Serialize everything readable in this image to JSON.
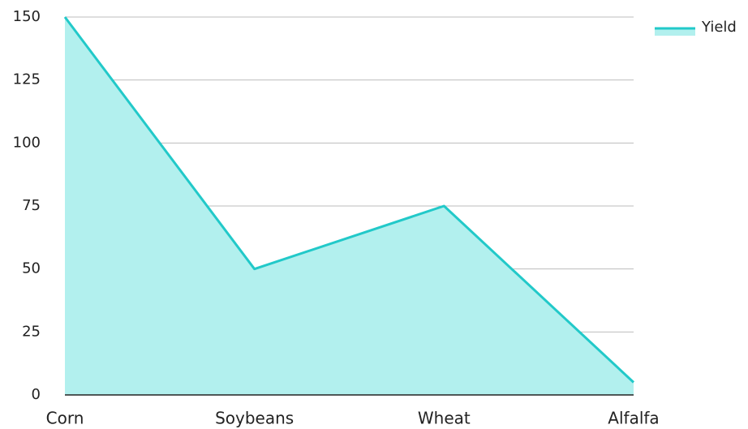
{
  "chart_data": {
    "type": "area",
    "categories": [
      "Corn",
      "Soybeans",
      "Wheat",
      "Alfalfa"
    ],
    "series": [
      {
        "name": "Yield",
        "color": "#22c9c9",
        "fill": "#b2f0ee",
        "values": [
          150,
          50,
          75,
          5
        ]
      }
    ],
    "ylim": [
      0,
      150
    ],
    "yticks": [
      0,
      25,
      50,
      75,
      100,
      125,
      150
    ],
    "grid": true,
    "legend": "top-right"
  }
}
